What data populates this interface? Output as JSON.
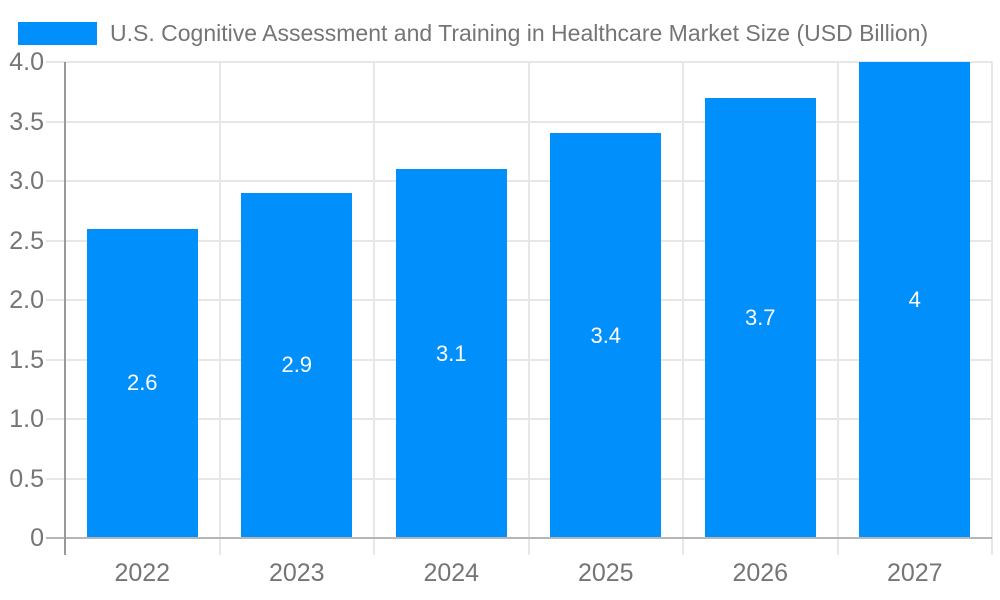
{
  "chart_data": {
    "type": "bar",
    "title": "U.S. Cognitive Assessment and Training in Healthcare Market Size (USD Billion)",
    "categories": [
      "2022",
      "2023",
      "2024",
      "2025",
      "2026",
      "2027"
    ],
    "values": [
      2.6,
      2.9,
      3.1,
      3.4,
      3.7,
      4
    ],
    "bar_labels": [
      "2.6",
      "2.9",
      "3.1",
      "3.4",
      "3.7",
      "4"
    ],
    "xlabel": "",
    "ylabel": "",
    "ylim": [
      0,
      4
    ],
    "yticks": [
      0,
      0.5,
      1,
      1.5,
      2,
      2.5,
      3,
      3.5,
      4
    ],
    "ytick_labels": [
      "0",
      "0.5",
      "1.0",
      "1.5",
      "2.0",
      "2.5",
      "3.0",
      "3.5",
      "4.0"
    ],
    "grid": true,
    "legend_position": "top-left",
    "colors": {
      "bar": "#008FFB",
      "grid": "#e7e7e7",
      "axis_line": "#999999",
      "baseline": "#b6b6b6",
      "tick_label": "#757575",
      "title": "#757575",
      "bar_label": "#ffffff",
      "background": "#ffffff"
    }
  }
}
